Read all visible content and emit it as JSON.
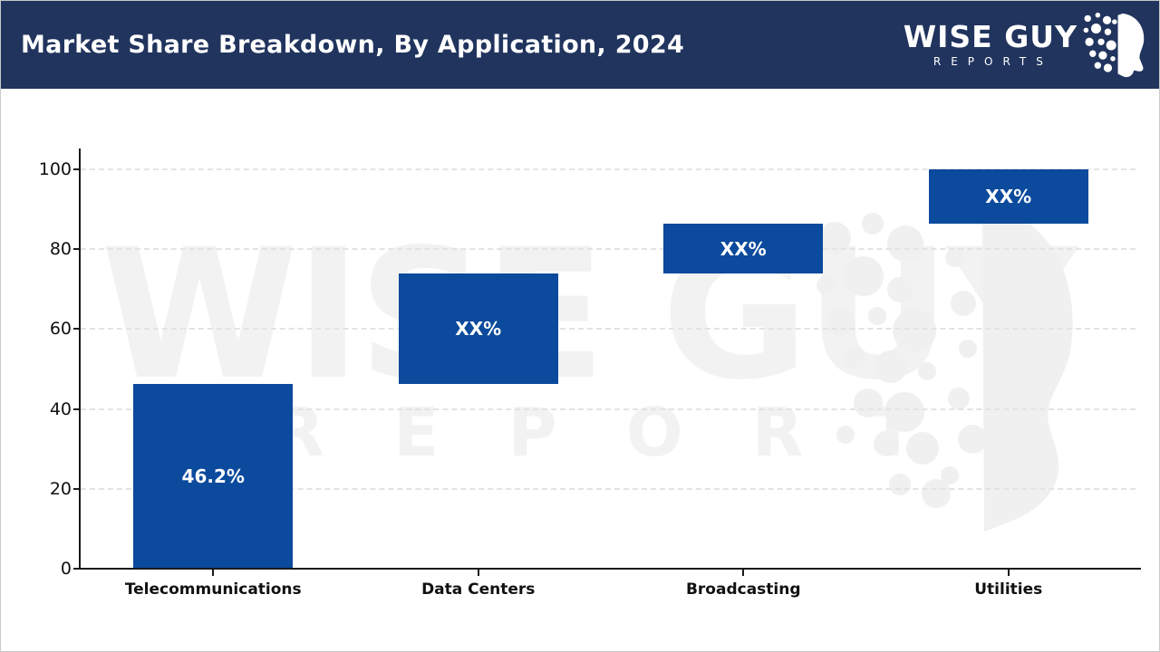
{
  "header": {
    "title": "Market Share Breakdown, By Application, 2024",
    "logo": {
      "primary": "WISE GUY",
      "secondary": "REPORTS"
    }
  },
  "watermark": {
    "line1": "WISE GUY",
    "line2": "REPORTS"
  },
  "colors": {
    "header_background": "#21345e",
    "bar_fill": "#0b4a9c",
    "bar_label_text": "#ffffff",
    "gridline": "#e3e3e3",
    "axis": "#1a1a1a",
    "watermark": "#f2f2f2"
  },
  "chart_data": {
    "type": "bar",
    "subtype": "waterfall",
    "title": "Market Share Breakdown, By Application, 2024",
    "categories": [
      "Telecommunications",
      "Data Centers",
      "Broadcasting",
      "Utilities"
    ],
    "segments": [
      {
        "category": "Telecommunications",
        "start": 0,
        "end": 46.2,
        "label": "46.2%"
      },
      {
        "category": "Data Centers",
        "start": 46.2,
        "end": 73.9,
        "label": "XX%"
      },
      {
        "category": "Broadcasting",
        "start": 73.9,
        "end": 86.4,
        "label": "XX%"
      },
      {
        "category": "Utilities",
        "start": 86.4,
        "end": 100,
        "label": "XX%"
      }
    ],
    "unit": "%",
    "yticks": [
      0,
      20,
      40,
      60,
      80,
      100
    ],
    "ylim": [
      0,
      105
    ],
    "xlabel": "",
    "ylabel": "",
    "grid": "horizontal dashed",
    "legend": "none"
  }
}
